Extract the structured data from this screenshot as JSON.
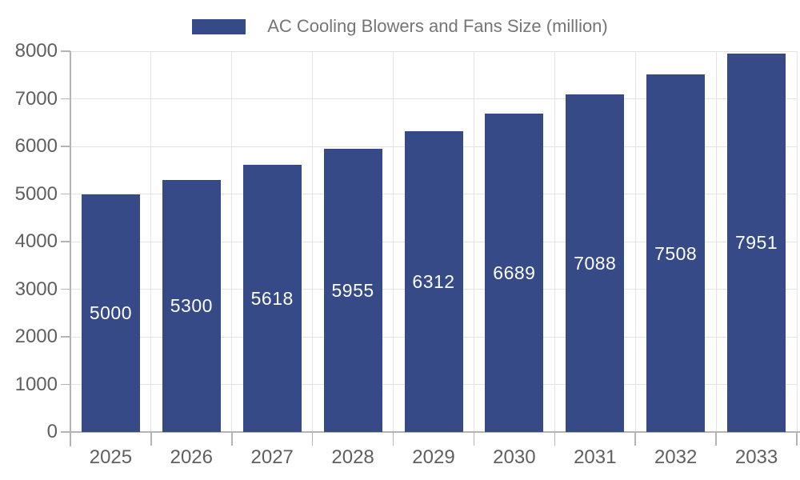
{
  "chart_data": {
    "type": "bar",
    "title": "AC Cooling Blowers and Fans Size (million)",
    "categories": [
      "2025",
      "2026",
      "2027",
      "2028",
      "2029",
      "2030",
      "2031",
      "2032",
      "2033"
    ],
    "values": [
      5000,
      5300,
      5618,
      5955,
      6312,
      6689,
      7088,
      7508,
      7951
    ],
    "xlabel": "",
    "ylabel": "",
    "ylim": [
      0,
      8000
    ],
    "yticks": [
      0,
      1000,
      2000,
      3000,
      4000,
      5000,
      6000,
      7000,
      8000
    ],
    "grid": true,
    "bar_value_labels_visible": true,
    "legend_position": "top-center",
    "colors": {
      "bar": "#374a88",
      "bar_label": "#ffffff",
      "tick_label": "#5f5f5f",
      "legend_text": "#757575",
      "gridline": "#e3e3e3",
      "axis": "#b4b4b4",
      "background": "#ffffff"
    }
  }
}
